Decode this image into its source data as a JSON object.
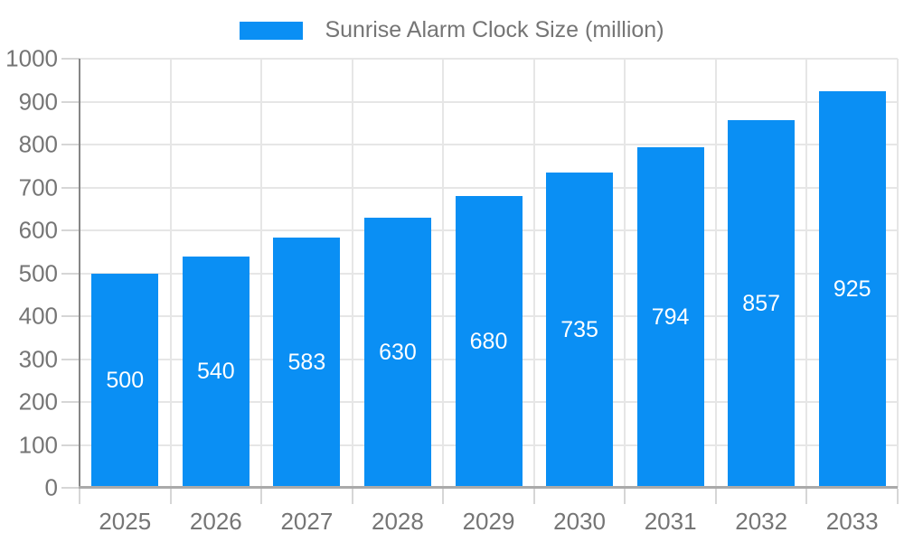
{
  "chart_data": {
    "type": "bar",
    "title": "Sunrise Alarm Clock Size (million)",
    "categories": [
      "2025",
      "2026",
      "2027",
      "2028",
      "2029",
      "2030",
      "2031",
      "2032",
      "2033"
    ],
    "series": [
      {
        "name": "Sunrise Alarm Clock Size (million)",
        "values": [
          500,
          540,
          583,
          630,
          680,
          735,
          794,
          857,
          925
        ]
      }
    ],
    "xlabel": "",
    "ylabel": "",
    "ylim": [
      0,
      1000
    ],
    "yticks": [
      0,
      100,
      200,
      300,
      400,
      500,
      600,
      700,
      800,
      900,
      1000
    ],
    "grid": true,
    "legend_position": "top-center",
    "bar_color": "#0a8ff4",
    "value_label_color": "#ffffff",
    "axis_text_color": "#757575",
    "grid_color": "#e6e6e6"
  },
  "legend": {
    "label": "Sunrise Alarm Clock Size (million)",
    "swatch_color": "#0a8ff4"
  }
}
